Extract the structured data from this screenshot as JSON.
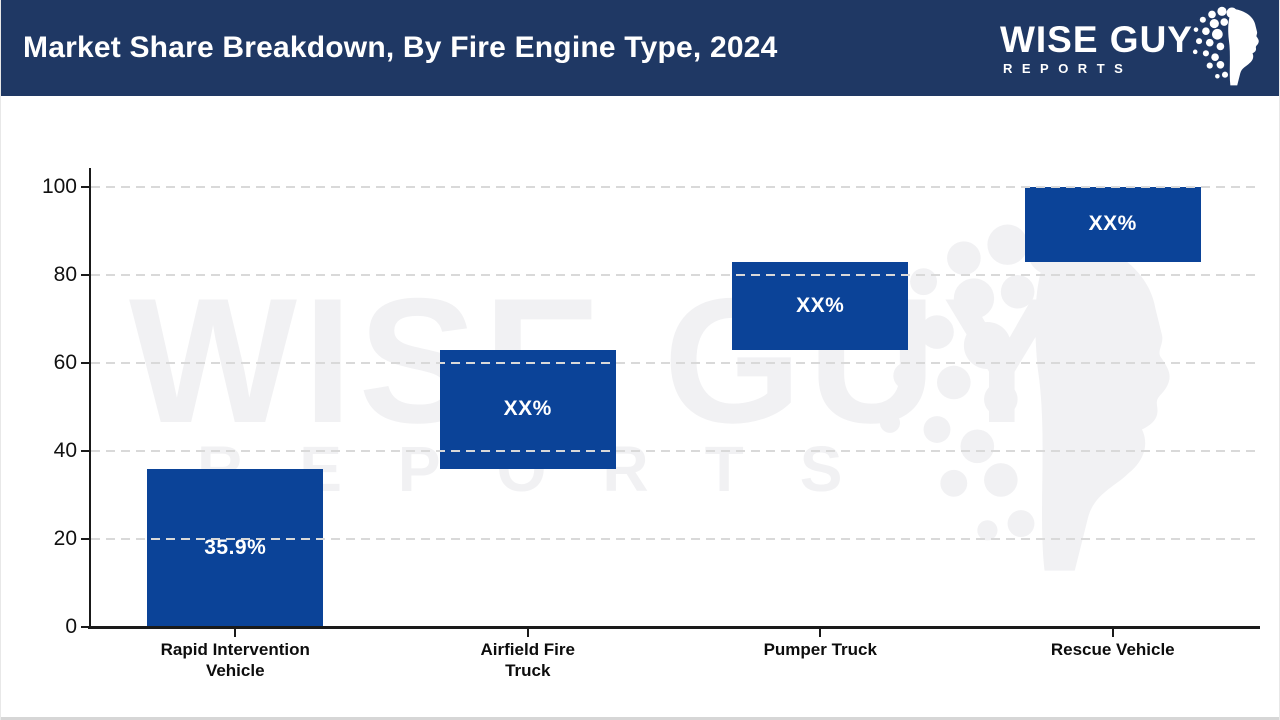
{
  "header": {
    "title": "Market Share Breakdown, By Fire Engine Type, 2024",
    "logo": {
      "line1": "WISE GUY",
      "line2": "REPORTS"
    }
  },
  "watermark": {
    "line1": "WISE GUY",
    "line2": "REPORTS"
  },
  "chart_data": {
    "type": "bar",
    "subtype": "floating_segment_waterfall",
    "title": "Market Share Breakdown, By Fire Engine Type, 2024",
    "categories": [
      "Rapid Intervention Vehicle",
      "Airfield Fire Truck",
      "Pumper Truck",
      "Rescue Vehicle"
    ],
    "category_label_lines": [
      [
        "Rapid Intervention",
        "Vehicle"
      ],
      [
        "Airfield Fire",
        "Truck"
      ],
      [
        "Pumper Truck"
      ],
      [
        "Rescue Vehicle"
      ]
    ],
    "segments": [
      {
        "category": "Rapid Intervention Vehicle",
        "start": 0,
        "end": 35.9,
        "label": "35.9%"
      },
      {
        "category": "Airfield Fire Truck",
        "start": 35.9,
        "end": 63,
        "label": "XX%"
      },
      {
        "category": "Pumper Truck",
        "start": 63,
        "end": 83,
        "label": "XX%"
      },
      {
        "category": "Rescue Vehicle",
        "start": 83,
        "end": 100,
        "label": "XX%"
      }
    ],
    "ylim": [
      0,
      100
    ],
    "yticks": [
      0,
      20,
      40,
      60,
      80,
      100
    ],
    "xlabel": "",
    "ylabel": "",
    "grid": "horizontal_dashed_over_bars",
    "legend": "none",
    "colors": {
      "bar": "#0b4398",
      "bar_label": "#ffffff",
      "axis": "#1a1a1a",
      "gridline": "#d9d9d9",
      "header_bg": "#1f3864",
      "header_text": "#ffffff",
      "watermark": "#f1f1f3"
    }
  }
}
